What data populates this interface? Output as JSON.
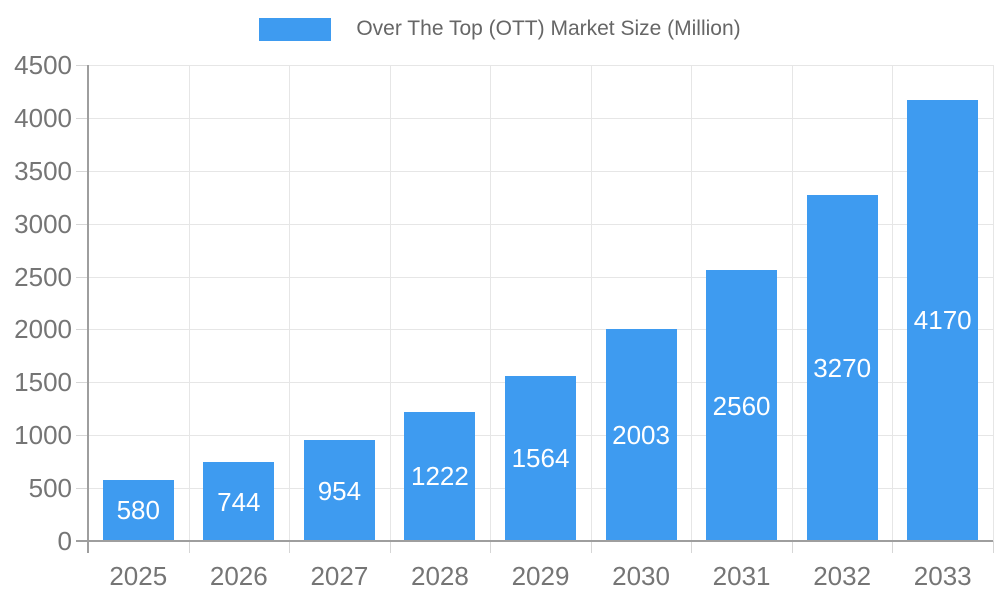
{
  "legend": {
    "label": "Over The Top (OTT) Market Size (Million)",
    "swatch_icon": "legend-swatch-rect"
  },
  "chart_data": {
    "type": "bar",
    "title": "Over The Top (OTT) Market Size (Million)",
    "categories": [
      "2025",
      "2026",
      "2027",
      "2028",
      "2029",
      "2030",
      "2031",
      "2032",
      "2033"
    ],
    "values": [
      580,
      744,
      954,
      1222,
      1564,
      2003,
      2560,
      3270,
      4170
    ],
    "series": [
      {
        "name": "Over The Top (OTT) Market Size (Million)",
        "values": [
          580,
          744,
          954,
          1222,
          1564,
          2003,
          2560,
          3270,
          4170
        ]
      }
    ],
    "xlabel": "",
    "ylabel": "",
    "ylim": [
      0,
      4500
    ],
    "ytick_step": 500,
    "y_tick_labels": [
      "0",
      "500",
      "1000",
      "1500",
      "2000",
      "2500",
      "3000",
      "3500",
      "4000",
      "4500"
    ],
    "grid": true,
    "legend_position": "top-center",
    "bar_labels": "centered-white"
  },
  "colors": {
    "bar": "#3e9bf0",
    "bar_label": "#ffffff",
    "axis_text": "#757575",
    "legend_text": "#666666",
    "grid_line": "#e6e6e6",
    "tick_mark": "#d6d6d6",
    "axis_line": "#9e9e9e"
  }
}
